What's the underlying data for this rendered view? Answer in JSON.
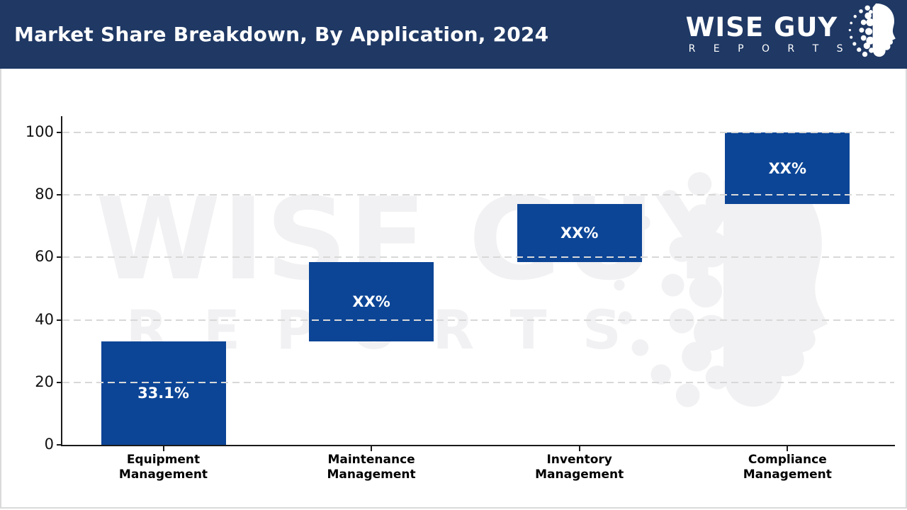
{
  "header": {
    "title": "Market Share Breakdown, By Application, 2024",
    "brand": {
      "name": "WISE GUY",
      "tagline": "R E P O R T S"
    }
  },
  "watermark": {
    "name": "WISE GUY",
    "tagline": "R E P O R T S"
  },
  "chart_data": {
    "type": "bar",
    "subtype": "waterfall",
    "title": "Market Share Breakdown, By Application, 2024",
    "categories": [
      "Equipment\nManagement",
      "Maintenance\nManagement",
      "Inventory\nManagement",
      "Compliance\nManagement"
    ],
    "segments": [
      {
        "category": "Equipment Management",
        "start": 0,
        "end": 33.1,
        "label": "33.1%"
      },
      {
        "category": "Maintenance Management",
        "start": 33.1,
        "end": 58.5,
        "label": "XX%"
      },
      {
        "category": "Inventory Management",
        "start": 58.5,
        "end": 77.0,
        "label": "XX%"
      },
      {
        "category": "Compliance Management",
        "start": 77.0,
        "end": 100.0,
        "label": "XX%"
      }
    ],
    "xlabel": "",
    "ylabel": "",
    "ylim": [
      0,
      100
    ],
    "yticks": [
      0,
      20,
      40,
      60,
      80,
      100
    ],
    "grid": {
      "axis": "y",
      "style": "dashed",
      "color": "#d8d8d8",
      "drawn_over_bars": true
    },
    "legend": null,
    "colors": {
      "bar": "#0C4596",
      "bar_label": "#ffffff",
      "axis": "#1a1a1a",
      "header_bg": "#1F3864",
      "watermark": "#f1f1f3"
    }
  }
}
